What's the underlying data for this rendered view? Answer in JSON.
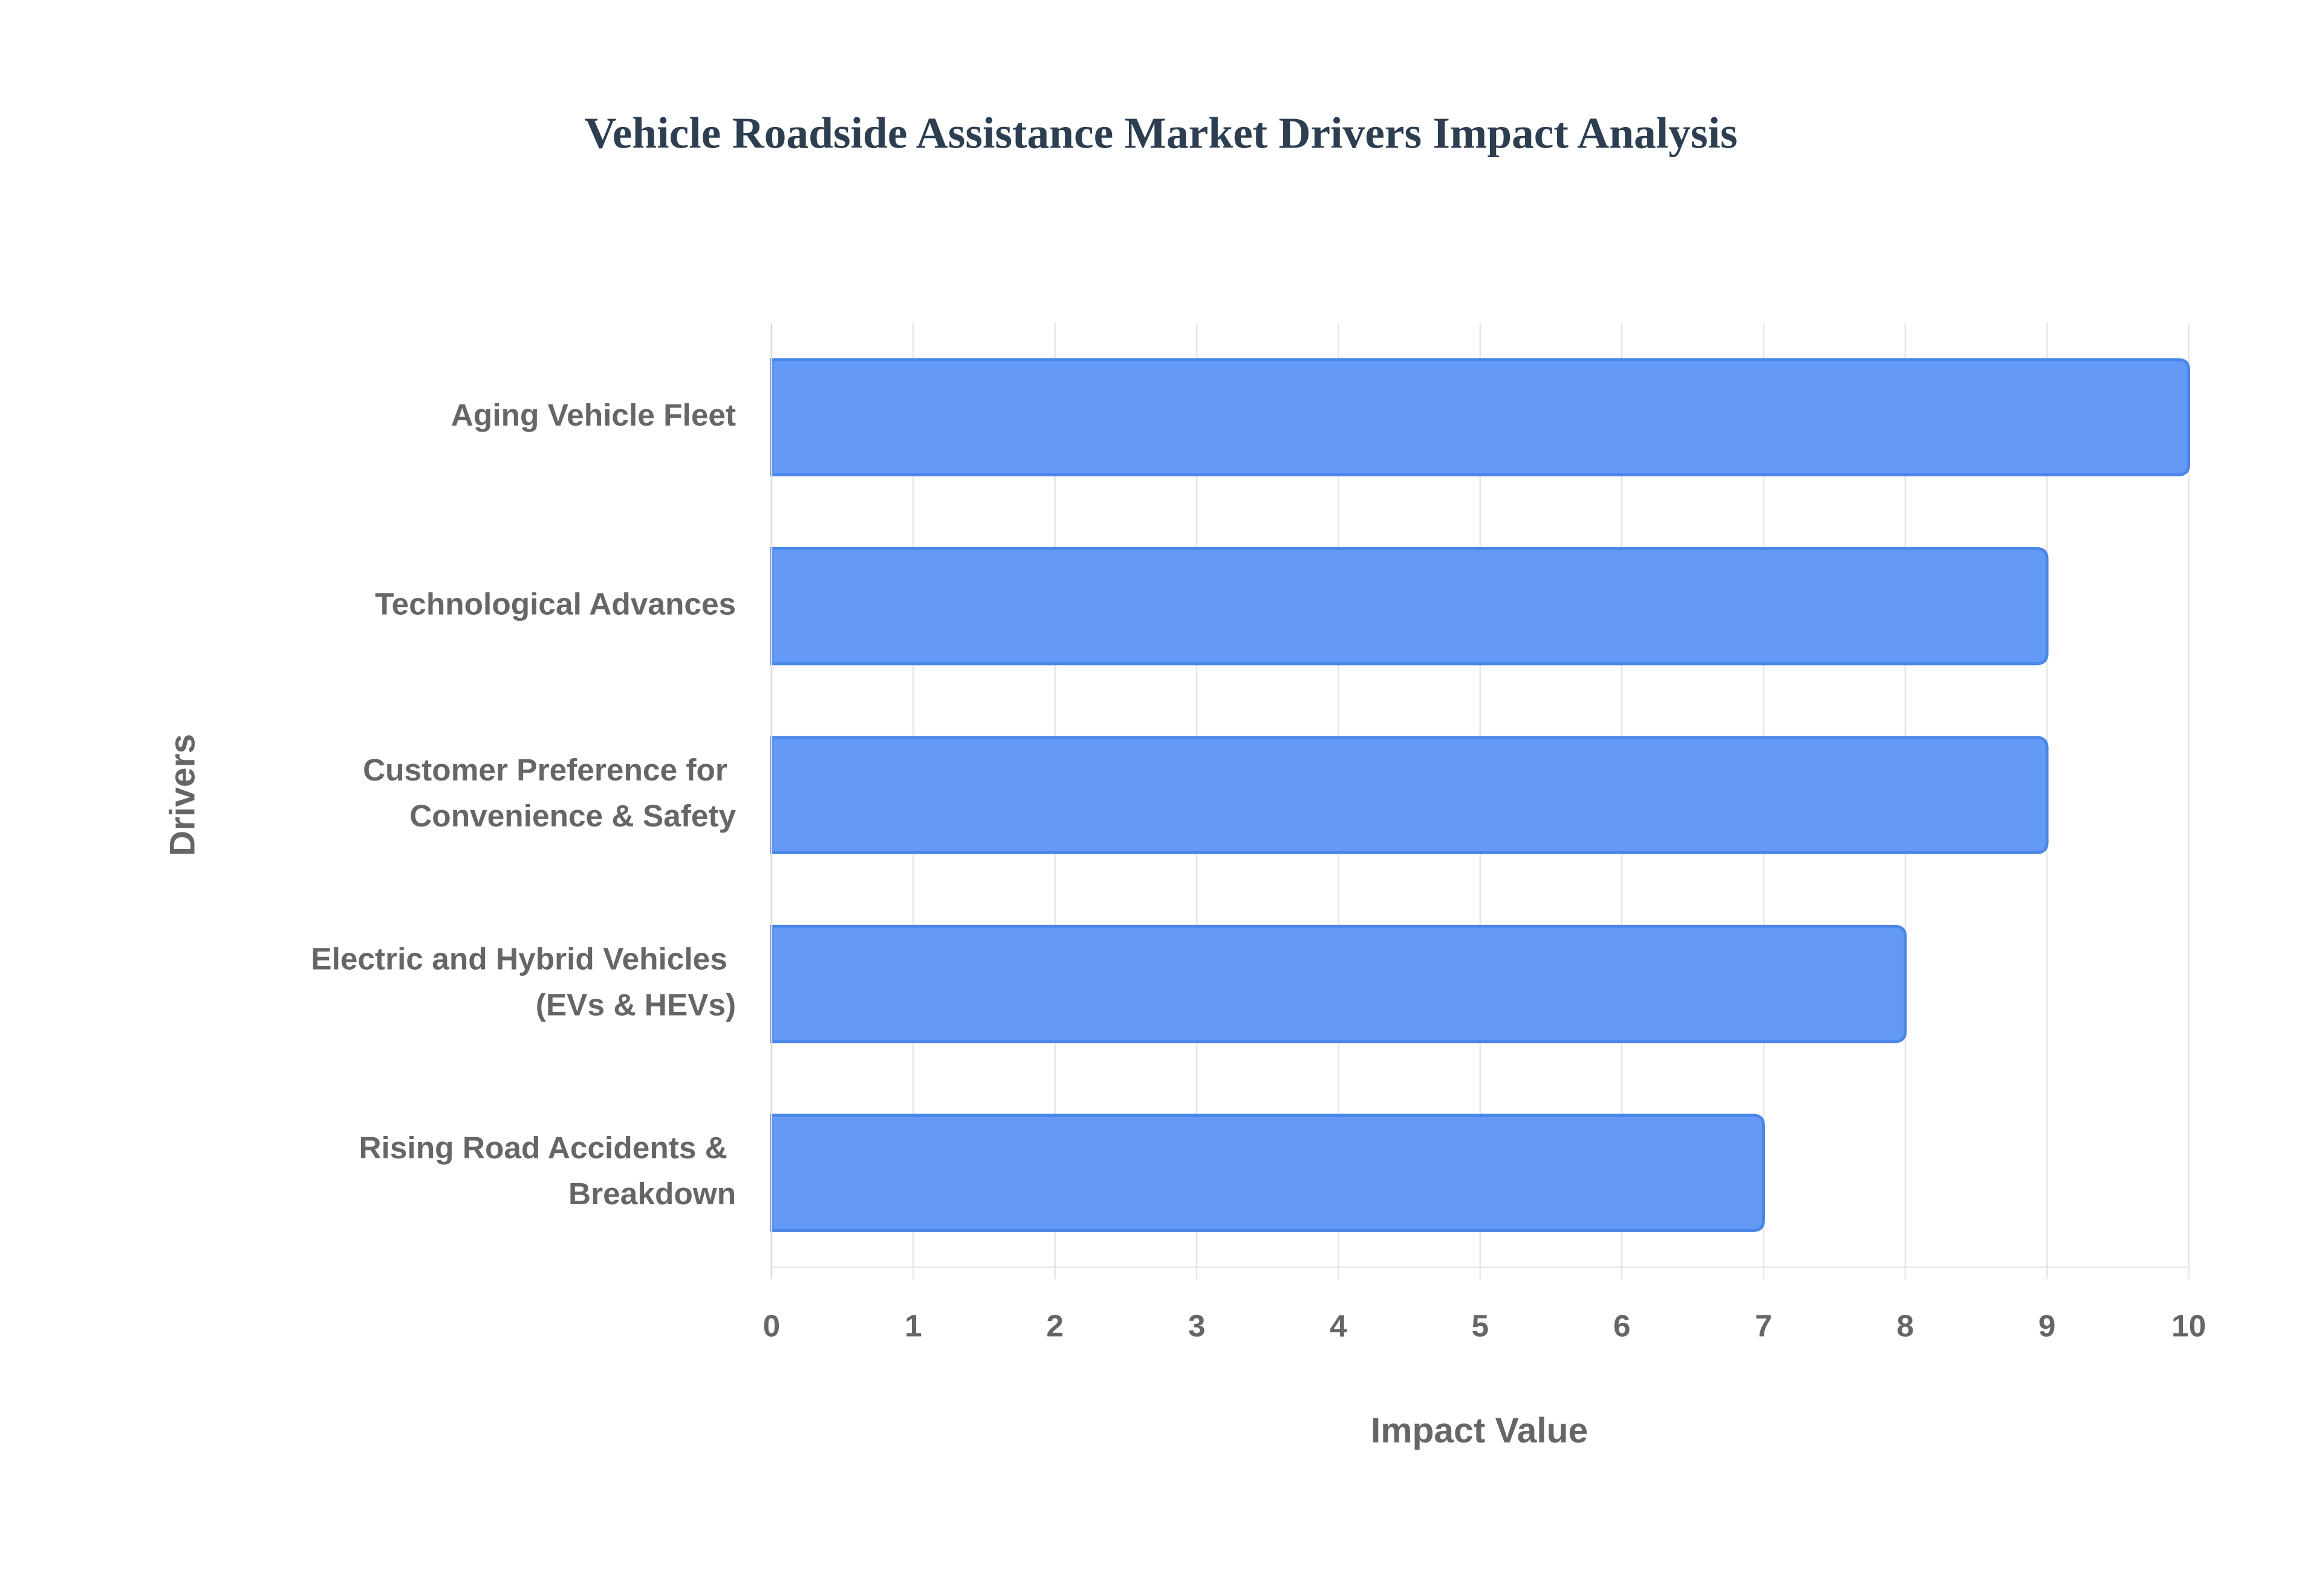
{
  "chart_data": {
    "type": "hbar",
    "title": "Vehicle Roadside Assistance Market Drivers Impact Analysis",
    "x_label": "Impact Value",
    "y_label": "Drivers",
    "categories": [
      "Aging Vehicle Fleet",
      "Technological Advances",
      "Customer Preference for Convenience & Safety",
      "Electric and Hybrid Vehicles (EVs & HEVs)",
      "Rising Road Accidents & Breakdown"
    ],
    "values": [
      10,
      9,
      9,
      8,
      7
    ],
    "color": "#6499f5",
    "xlim": [
      0,
      10
    ],
    "xticks": [
      0,
      1,
      2,
      3,
      4,
      5,
      6,
      7,
      8,
      9,
      10
    ],
    "grid": true
  }
}
